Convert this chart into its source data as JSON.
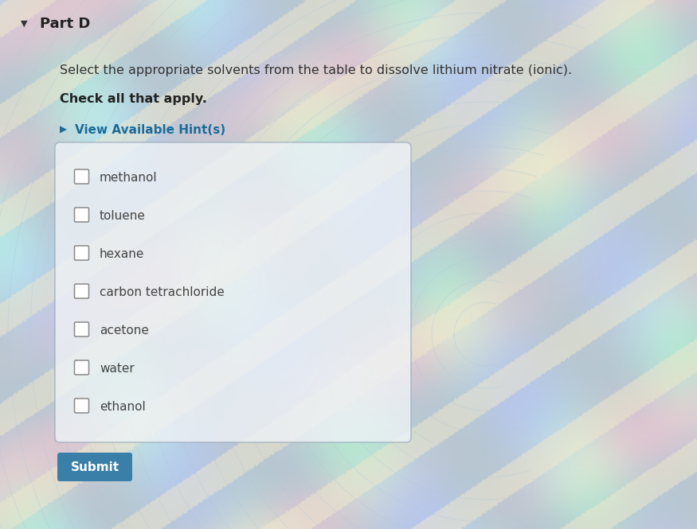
{
  "part_label": "Part D",
  "question_text": "Select the appropriate solvents from the table to dissolve lithium nitrate (ionic).",
  "check_text": "Check all that apply.",
  "hint_text": "View Available Hint(s)",
  "solvents": [
    "methanol",
    "toluene",
    "hexane",
    "carbon tetrachloride",
    "acetone",
    "water",
    "ethanol"
  ],
  "submit_text": "Submit",
  "bg_color": "#c8d4de",
  "box_bg": "#eef2f6",
  "box_border": "#9aaabb",
  "submit_bg": "#3a7fa8",
  "submit_text_color": "#ffffff",
  "part_label_color": "#222222",
  "question_color": "#333333",
  "check_color": "#222222",
  "hint_color": "#1a6b99",
  "solvent_color": "#444444",
  "checkbox_border": "#888888",
  "triangle_color": "#333333",
  "hint_triangle_color": "#1a6b99",
  "wave_colors": [
    "#b8c8d8",
    "#d4dce4",
    "#e8eef4",
    "#cfe0ea",
    "#dde8f0"
  ],
  "wave_colors2": [
    "#e8d8c8",
    "#f0e8d8",
    "#f8f0e8"
  ],
  "wave_colors3": [
    "#c8d8e8",
    "#d8e4f0",
    "#e4eef8"
  ]
}
